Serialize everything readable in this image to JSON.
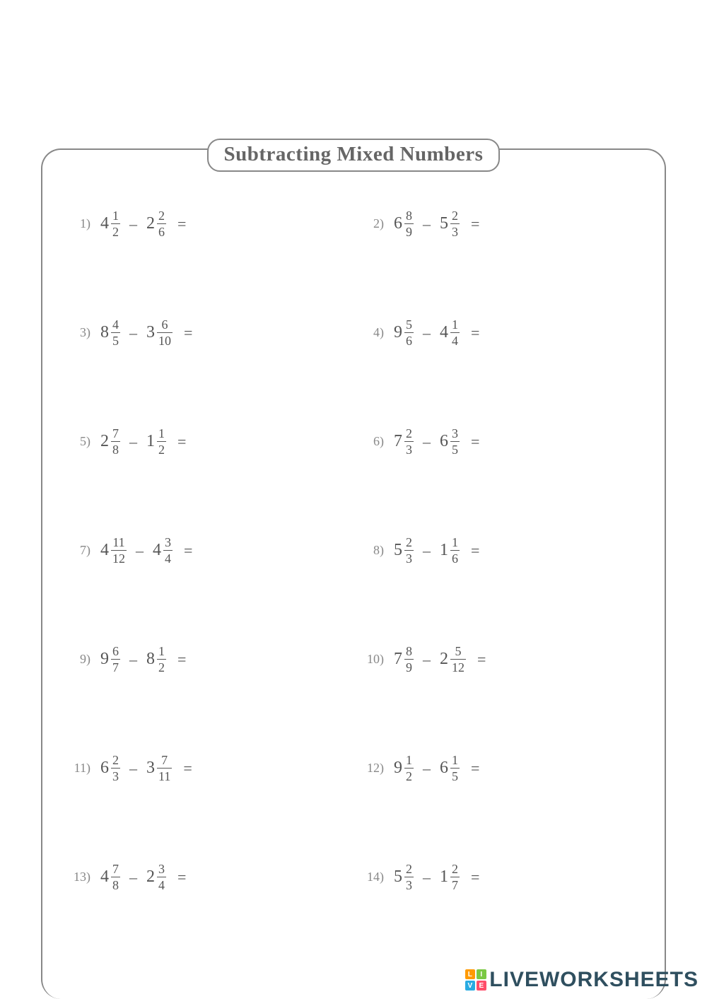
{
  "title": "Subtracting Mixed Numbers",
  "text_color": "#555555",
  "border_color": "#888888",
  "title_color": "#666666",
  "operator": "–",
  "equals": "=",
  "problems": [
    {
      "n": "1)",
      "a": {
        "w": "4",
        "num": "1",
        "den": "2"
      },
      "b": {
        "w": "2",
        "num": "2",
        "den": "6"
      }
    },
    {
      "n": "2)",
      "a": {
        "w": "6",
        "num": "8",
        "den": "9"
      },
      "b": {
        "w": "5",
        "num": "2",
        "den": "3"
      }
    },
    {
      "n": "3)",
      "a": {
        "w": "8",
        "num": "4",
        "den": "5"
      },
      "b": {
        "w": "3",
        "num": "6",
        "den": "10"
      }
    },
    {
      "n": "4)",
      "a": {
        "w": "9",
        "num": "5",
        "den": "6"
      },
      "b": {
        "w": "4",
        "num": "1",
        "den": "4"
      }
    },
    {
      "n": "5)",
      "a": {
        "w": "2",
        "num": "7",
        "den": "8"
      },
      "b": {
        "w": "1",
        "num": "1",
        "den": "2"
      }
    },
    {
      "n": "6)",
      "a": {
        "w": "7",
        "num": "2",
        "den": "3"
      },
      "b": {
        "w": "6",
        "num": "3",
        "den": "5"
      }
    },
    {
      "n": "7)",
      "a": {
        "w": "4",
        "num": "11",
        "den": "12"
      },
      "b": {
        "w": "4",
        "num": "3",
        "den": "4"
      }
    },
    {
      "n": "8)",
      "a": {
        "w": "5",
        "num": "2",
        "den": "3"
      },
      "b": {
        "w": "1",
        "num": "1",
        "den": "6"
      }
    },
    {
      "n": "9)",
      "a": {
        "w": "9",
        "num": "6",
        "den": "7"
      },
      "b": {
        "w": "8",
        "num": "1",
        "den": "2"
      }
    },
    {
      "n": "10)",
      "a": {
        "w": "7",
        "num": "8",
        "den": "9"
      },
      "b": {
        "w": "2",
        "num": "5",
        "den": "12"
      }
    },
    {
      "n": "11)",
      "a": {
        "w": "6",
        "num": "2",
        "den": "3"
      },
      "b": {
        "w": "3",
        "num": "7",
        "den": "11"
      }
    },
    {
      "n": "12)",
      "a": {
        "w": "9",
        "num": "1",
        "den": "2"
      },
      "b": {
        "w": "6",
        "num": "1",
        "den": "5"
      }
    },
    {
      "n": "13)",
      "a": {
        "w": "4",
        "num": "7",
        "den": "8"
      },
      "b": {
        "w": "2",
        "num": "3",
        "den": "4"
      }
    },
    {
      "n": "14)",
      "a": {
        "w": "5",
        "num": "2",
        "den": "3"
      },
      "b": {
        "w": "1",
        "num": "2",
        "den": "7"
      }
    }
  ],
  "watermark": {
    "text": "LIVEWORKSHEETS",
    "badge": [
      {
        "t": "L",
        "c": "#ff9a00"
      },
      {
        "t": "I",
        "c": "#7ac943"
      },
      {
        "t": "V",
        "c": "#29abe2"
      },
      {
        "t": "E",
        "c": "#ff4d6a"
      }
    ],
    "text_color": "#2f4f5f"
  }
}
